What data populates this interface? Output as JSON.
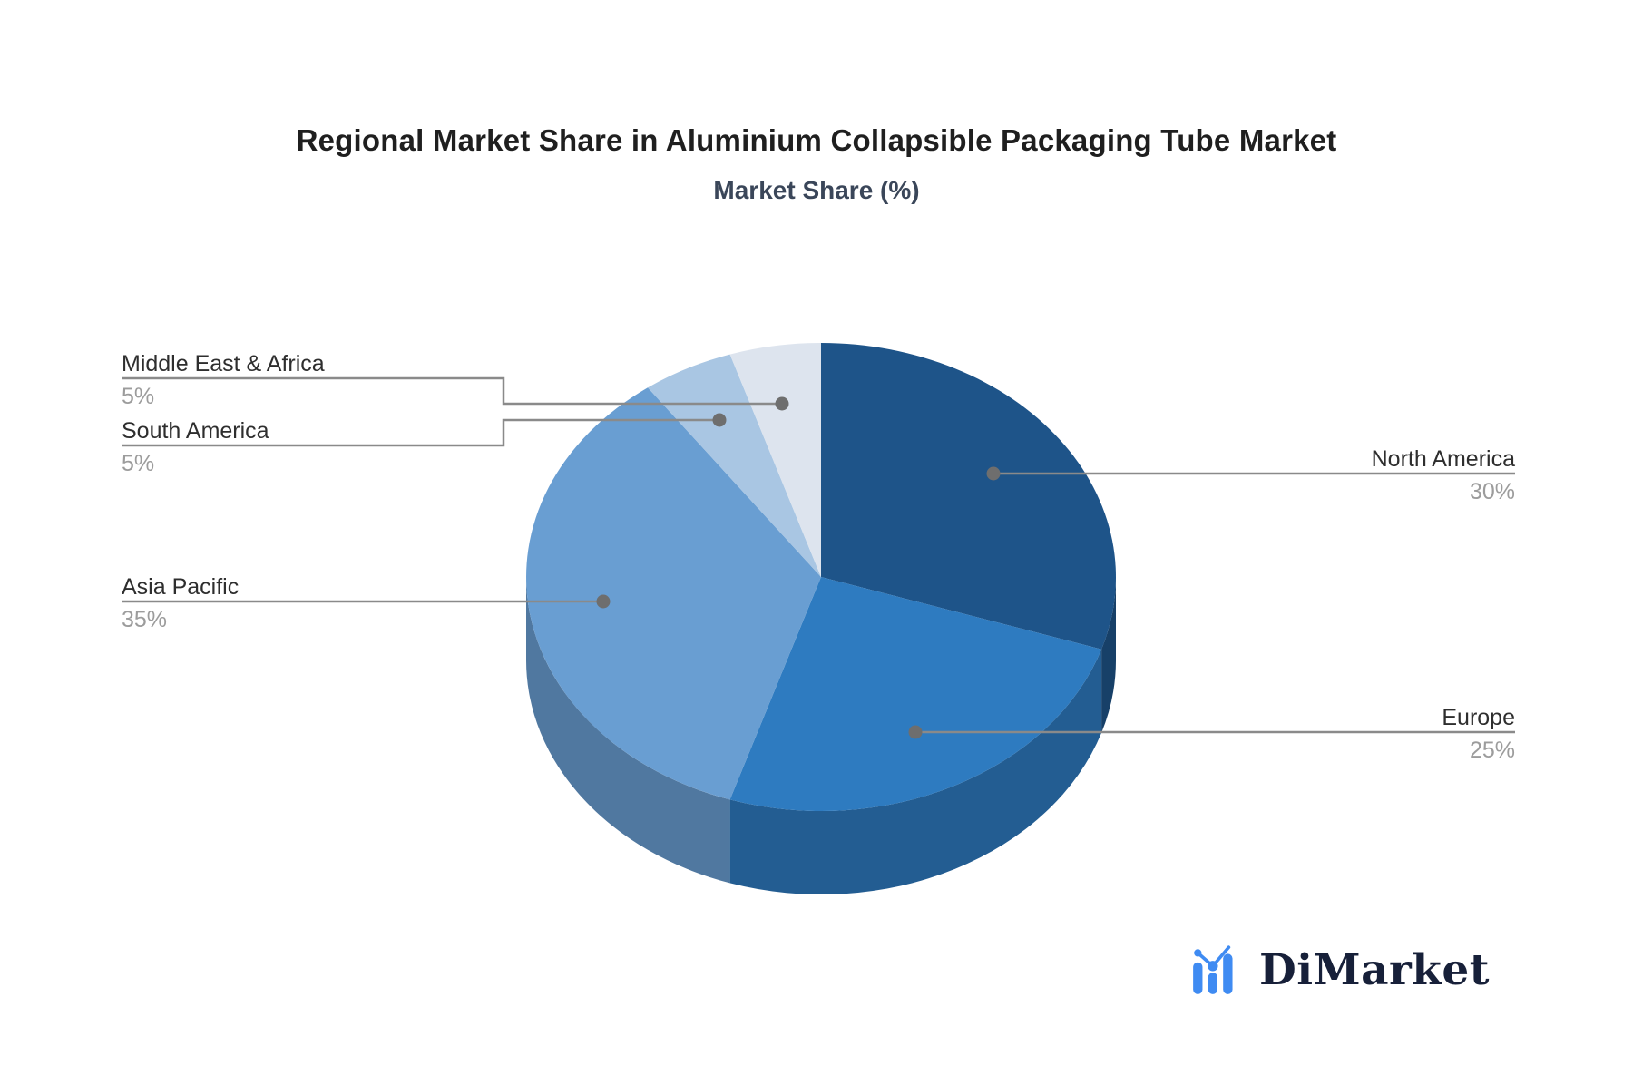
{
  "header": {
    "title": "Regional Market Share in Aluminium Collapsible Packaging Tube Market",
    "subtitle": "Market Share (%)"
  },
  "chart_data": {
    "type": "pie",
    "style": "3d-depth",
    "title": "Regional Market Share in Aluminium Collapsible Packaging Tube Market",
    "subtitle": "Market Share (%)",
    "unit": "%",
    "start_angle_deg": 0,
    "direction": "clockwise",
    "legend_position": "callout-labels-left-right",
    "slices": [
      {
        "label": "North America",
        "value": 30,
        "value_text": "30%",
        "color": "#1E5489"
      },
      {
        "label": "Europe",
        "value": 25,
        "value_text": "25%",
        "color": "#2E7BC0"
      },
      {
        "label": "Asia Pacific",
        "value": 35,
        "value_text": "35%",
        "color": "#699ED2"
      },
      {
        "label": "South America",
        "value": 5,
        "value_text": "5%",
        "color": "#A9C6E3"
      },
      {
        "label": "Middle East & Africa",
        "value": 5,
        "value_text": "5%",
        "color": "#DDE4EE"
      }
    ]
  },
  "logo": {
    "text": "DiMarket",
    "icon": "bar-line-chart-icon",
    "accent_color": "#3F8BF2",
    "text_color": "#172039"
  },
  "styles": {
    "title_color": "#1F1F1F",
    "subtitle_color": "#3A4659",
    "label_color": "#2E2E2E",
    "value_color": "#9C9C9C",
    "connector_color": "#8A8A8A",
    "dot_color": "#6E6E6E",
    "background": "#FFFFFF"
  }
}
